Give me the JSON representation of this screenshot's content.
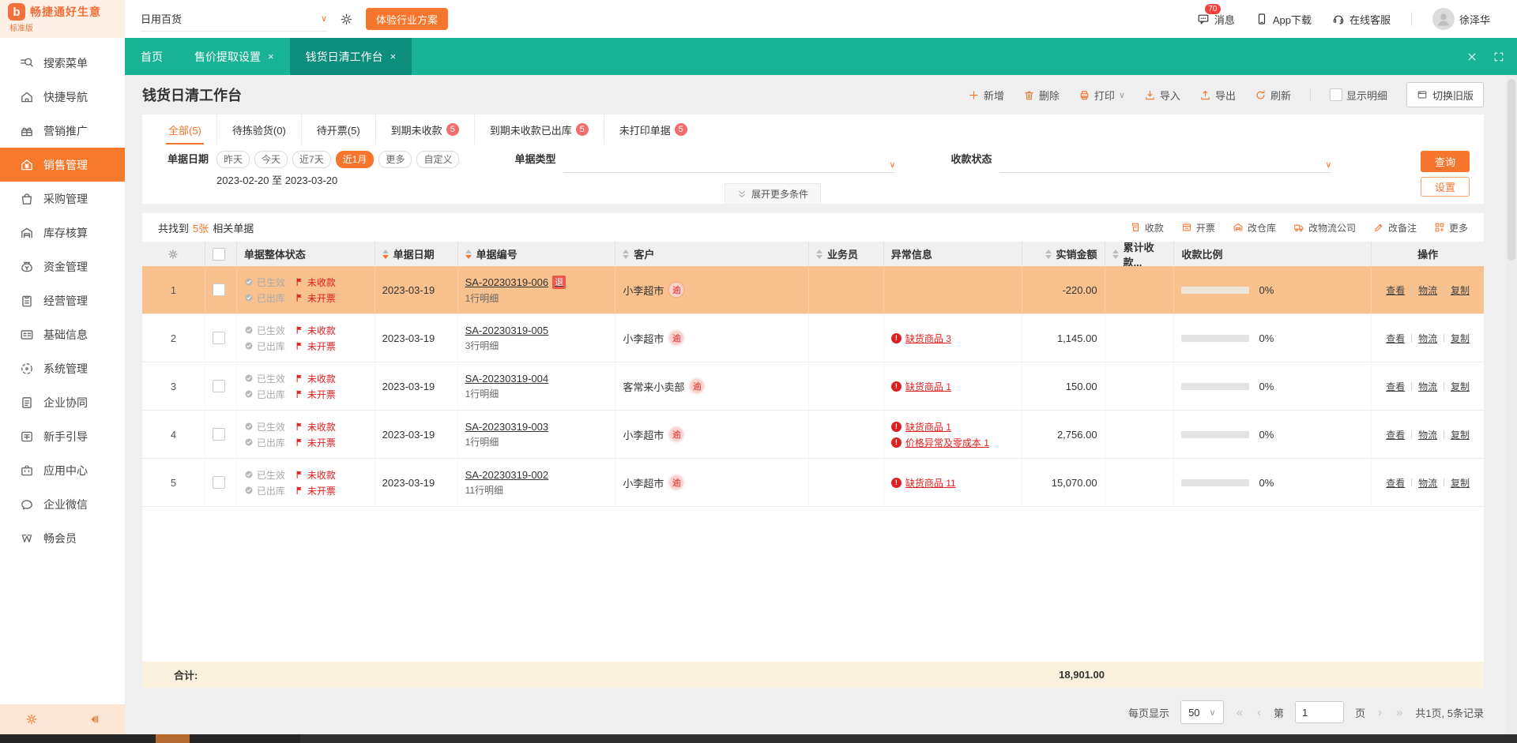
{
  "colors": {
    "accent": "#f7752c",
    "teal": "#17b394",
    "teal_active": "#0d8e7c",
    "row_highlight": "#f8c18e",
    "danger": "#e02020",
    "summary_bg": "#faf2de"
  },
  "topbar": {
    "brand": "畅捷通好生意",
    "edition": "标准版",
    "logo_mark": "b",
    "business_select": "日用百货",
    "trial_button": "体验行业方案",
    "message_label": "消息",
    "message_count": "70",
    "app_download": "App下载",
    "online_service": "在线客服",
    "user_name": "徐泽华"
  },
  "window_tabs": [
    {
      "label": "首页",
      "active": false,
      "closable": false
    },
    {
      "label": "售价提取设置",
      "active": false,
      "closable": true
    },
    {
      "label": "钱货日清工作台",
      "active": true,
      "closable": true
    }
  ],
  "sidebar": {
    "items": [
      {
        "icon": "search",
        "label": "搜索菜单",
        "active": false
      },
      {
        "icon": "home",
        "label": "快捷导航",
        "active": false
      },
      {
        "icon": "gift",
        "label": "营销推广",
        "active": false
      },
      {
        "icon": "sale",
        "label": "销售管理",
        "active": true
      },
      {
        "icon": "bag",
        "label": "采购管理",
        "active": false
      },
      {
        "icon": "warehouse",
        "label": "库存核算",
        "active": false
      },
      {
        "icon": "money",
        "label": "资金管理",
        "active": false
      },
      {
        "icon": "clipboard",
        "label": "经营管理",
        "active": false
      },
      {
        "icon": "idcard",
        "label": "基础信息",
        "active": false
      },
      {
        "icon": "system",
        "label": "系统管理",
        "active": false
      },
      {
        "icon": "collab",
        "label": "企业协同",
        "active": false
      },
      {
        "icon": "guide",
        "label": "新手引导",
        "active": false
      },
      {
        "icon": "appcenter",
        "label": "应用中心",
        "active": false
      },
      {
        "icon": "wechat",
        "label": "企业微信",
        "active": false
      },
      {
        "icon": "member",
        "label": "畅会员",
        "active": false
      }
    ]
  },
  "page": {
    "title": "钱货日清工作台",
    "toolbar": [
      {
        "icon": "plus",
        "label": "新增",
        "dropdown": false
      },
      {
        "icon": "trash",
        "label": "删除",
        "dropdown": false
      },
      {
        "icon": "printer",
        "label": "打印",
        "dropdown": true
      },
      {
        "icon": "import",
        "label": "导入",
        "dropdown": false
      },
      {
        "icon": "export",
        "label": "导出",
        "dropdown": false
      },
      {
        "icon": "refresh",
        "label": "刷新",
        "dropdown": false
      }
    ],
    "show_detail": "显示明细",
    "switch_old": "切换旧版"
  },
  "filters": {
    "tabs": [
      {
        "label": "全部(5)",
        "active": true,
        "badge": ""
      },
      {
        "label": "待拣验货(0)",
        "active": false,
        "badge": ""
      },
      {
        "label": "待开票(5)",
        "active": false,
        "badge": ""
      },
      {
        "label": "到期未收款",
        "active": false,
        "badge": "5"
      },
      {
        "label": "到期未收款已出库",
        "active": false,
        "badge": "5"
      },
      {
        "label": "未打印单据",
        "active": false,
        "badge": "5"
      }
    ],
    "date_label": "单据日期",
    "date_pills": [
      {
        "label": "昨天",
        "active": false
      },
      {
        "label": "今天",
        "active": false
      },
      {
        "label": "近7天",
        "active": false
      },
      {
        "label": "近1月",
        "active": true
      },
      {
        "label": "更多",
        "active": false
      },
      {
        "label": "自定义",
        "active": false
      }
    ],
    "date_range": "2023-02-20 至 2023-03-20",
    "doc_type_label": "单据类型",
    "pay_status_label": "收款状态",
    "search": "查询",
    "settings": "设置",
    "expand": "展开更多条件"
  },
  "list": {
    "found_prefix": "共找到",
    "found_count": "5张",
    "found_suffix": "相关单据",
    "batch_actions": [
      {
        "icon": "receipt",
        "label": "收款"
      },
      {
        "icon": "invoice",
        "label": "开票"
      },
      {
        "icon": "warehouse",
        "label": "改仓库"
      },
      {
        "icon": "truck",
        "label": "改物流公司"
      },
      {
        "icon": "editnote",
        "label": "改备注"
      },
      {
        "icon": "grid",
        "label": "更多"
      }
    ],
    "columns": [
      {
        "label": "单据整体状态",
        "sort": ""
      },
      {
        "label": "单据日期",
        "sort": "down"
      },
      {
        "label": "单据编号",
        "sort": "down"
      },
      {
        "label": "客户",
        "sort": "both"
      },
      {
        "label": "业务员",
        "sort": "both"
      },
      {
        "label": "异常信息",
        "sort": ""
      },
      {
        "label": "实销金额",
        "sort": "both"
      },
      {
        "label": "累计收款...",
        "sort": "both"
      },
      {
        "label": "收款比例",
        "sort": ""
      },
      {
        "label": "操作",
        "sort": ""
      }
    ],
    "status_done": [
      "已生效",
      "已出库"
    ],
    "status_flag": [
      "未收款",
      "未开票"
    ],
    "rows": [
      {
        "index": "1",
        "highlight": true,
        "date": "2023-03-19",
        "doc_no": "SA-20230319-006",
        "doc_badge": "退",
        "detail": "1行明细",
        "customer": "小李超市",
        "customer_badge": "逾",
        "exceptions": [],
        "amount": "-220.00",
        "received": "",
        "ratio": "0%"
      },
      {
        "index": "2",
        "highlight": false,
        "date": "2023-03-19",
        "doc_no": "SA-20230319-005",
        "doc_badge": "",
        "detail": "3行明细",
        "customer": "小李超市",
        "customer_badge": "逾",
        "exceptions": [
          "缺货商品 3"
        ],
        "amount": "1,145.00",
        "received": "",
        "ratio": "0%"
      },
      {
        "index": "3",
        "highlight": false,
        "date": "2023-03-19",
        "doc_no": "SA-20230319-004",
        "doc_badge": "",
        "detail": "1行明细",
        "customer": "客常来小卖部",
        "customer_badge": "逾",
        "exceptions": [
          "缺货商品 1"
        ],
        "amount": "150.00",
        "received": "",
        "ratio": "0%"
      },
      {
        "index": "4",
        "highlight": false,
        "date": "2023-03-19",
        "doc_no": "SA-20230319-003",
        "doc_badge": "",
        "detail": "1行明细",
        "customer": "小李超市",
        "customer_badge": "逾",
        "exceptions": [
          "缺货商品 1",
          "价格异常及零成本 1"
        ],
        "amount": "2,756.00",
        "received": "",
        "ratio": "0%"
      },
      {
        "index": "5",
        "highlight": false,
        "date": "2023-03-19",
        "doc_no": "SA-20230319-002",
        "doc_badge": "",
        "detail": "11行明细",
        "customer": "小李超市",
        "customer_badge": "逾",
        "exceptions": [
          "缺货商品 11"
        ],
        "amount": "15,070.00",
        "received": "",
        "ratio": "0%"
      }
    ],
    "row_actions": [
      "查看",
      "物流",
      "复制"
    ],
    "total_label": "合计:",
    "total_amount": "18,901.00"
  },
  "pagination": {
    "per_page_label": "每页显示",
    "per_page": "50",
    "first": "«",
    "prev": "‹",
    "page_prefix": "第",
    "page": "1",
    "page_suffix": "页",
    "next": "›",
    "last": "»",
    "total_info": "共1页, 5条记录"
  }
}
